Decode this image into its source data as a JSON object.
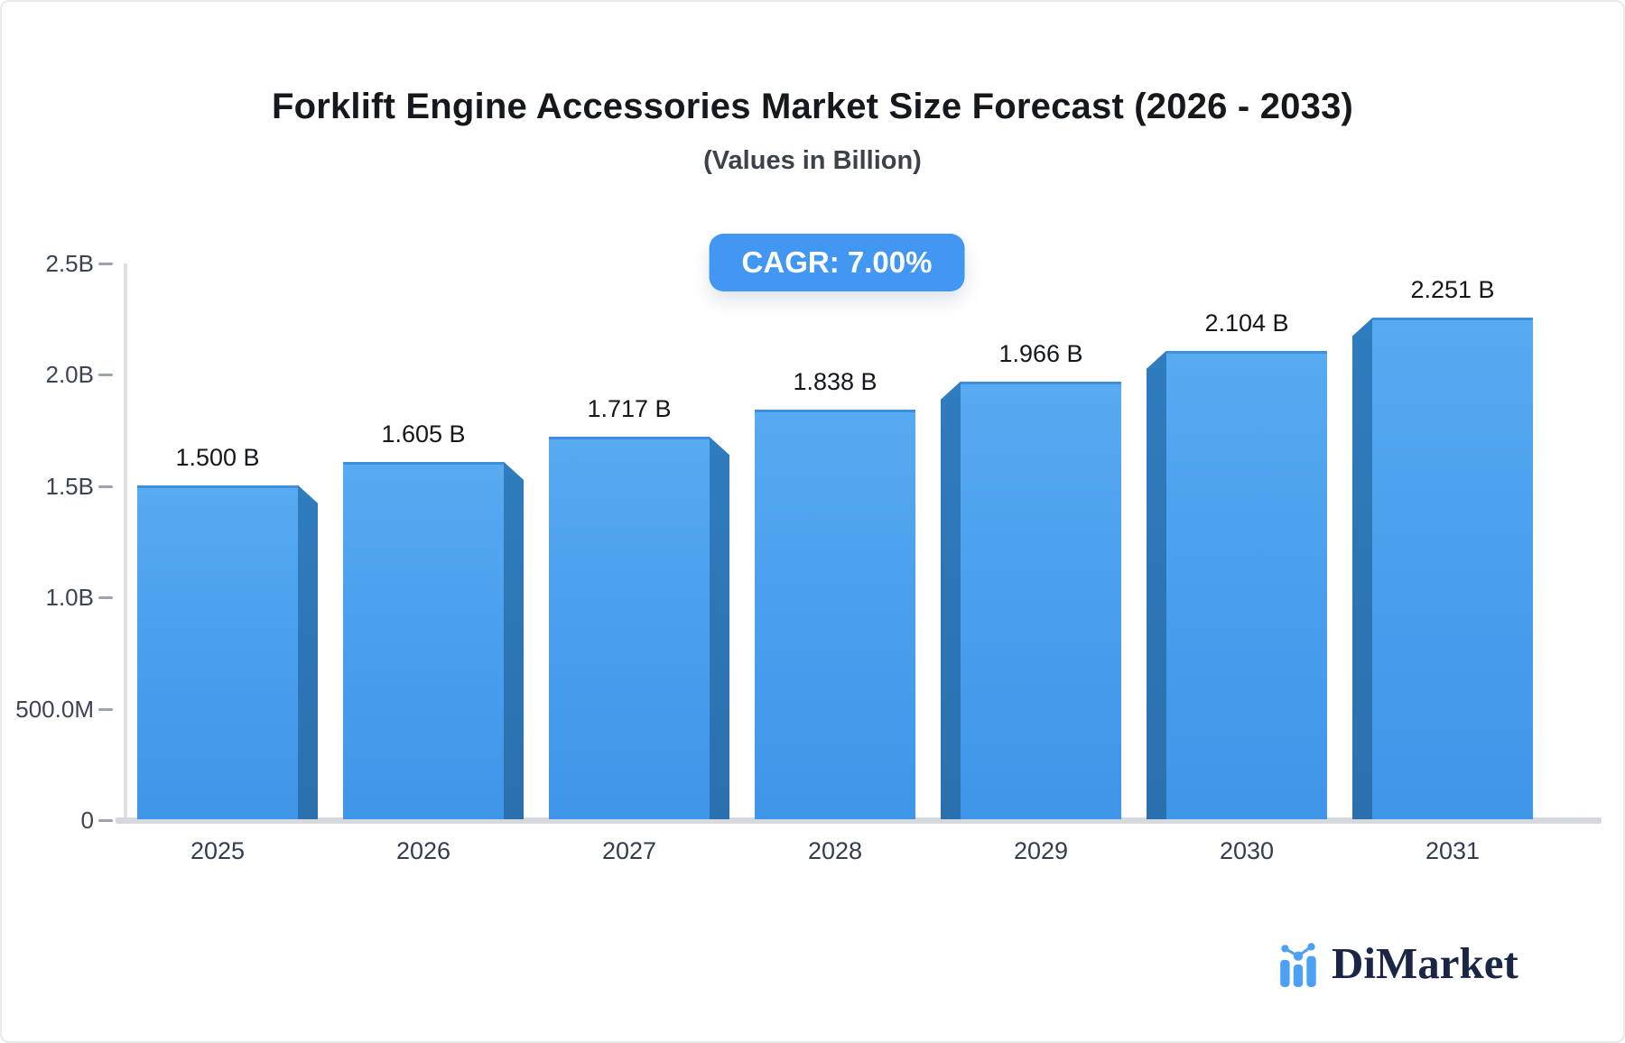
{
  "header": {
    "title": "Forklift Engine Accessories Market Size Forecast (2026 - 2033)",
    "subtitle": "(Values in Billion)"
  },
  "badge": {
    "label": "CAGR: 7.00%",
    "bg": "#4197F1"
  },
  "logo": {
    "brand": "DiMarket",
    "mark_color": "#4DA1F4",
    "text_color": "#1b2545"
  },
  "chart_data": {
    "type": "bar",
    "title": "Forklift Engine Accessories Market Size Forecast (2026 - 2033)",
    "subtitle": "(Values in Billion)",
    "cagr": "7.00%",
    "categories": [
      "2025",
      "2026",
      "2027",
      "2028",
      "2029",
      "2030",
      "2031"
    ],
    "values": [
      1.5,
      1.605,
      1.717,
      1.838,
      1.966,
      2.104,
      2.251
    ],
    "value_labels": [
      "1.500 B",
      "1.605 B",
      "1.717 B",
      "1.838 B",
      "1.966 B",
      "2.104 B",
      "2.251 B"
    ],
    "unit": "Billion",
    "ylim": [
      0,
      2.5
    ],
    "yticks": [
      {
        "label": "2.5B",
        "value": 2.5
      },
      {
        "label": "2.0B",
        "value": 2.0
      },
      {
        "label": "1.5B",
        "value": 1.5
      },
      {
        "label": "1.0B",
        "value": 1.0
      },
      {
        "label": "500.0M",
        "value": 0.5
      },
      {
        "label": "0",
        "value": 0
      }
    ],
    "grid": false,
    "legend": false,
    "bar_style": {
      "front_top": "#58AAF1",
      "front_bottom": "#3F96E9",
      "top_edge": "#3E90DC",
      "side_face": "#2E77B7"
    }
  }
}
